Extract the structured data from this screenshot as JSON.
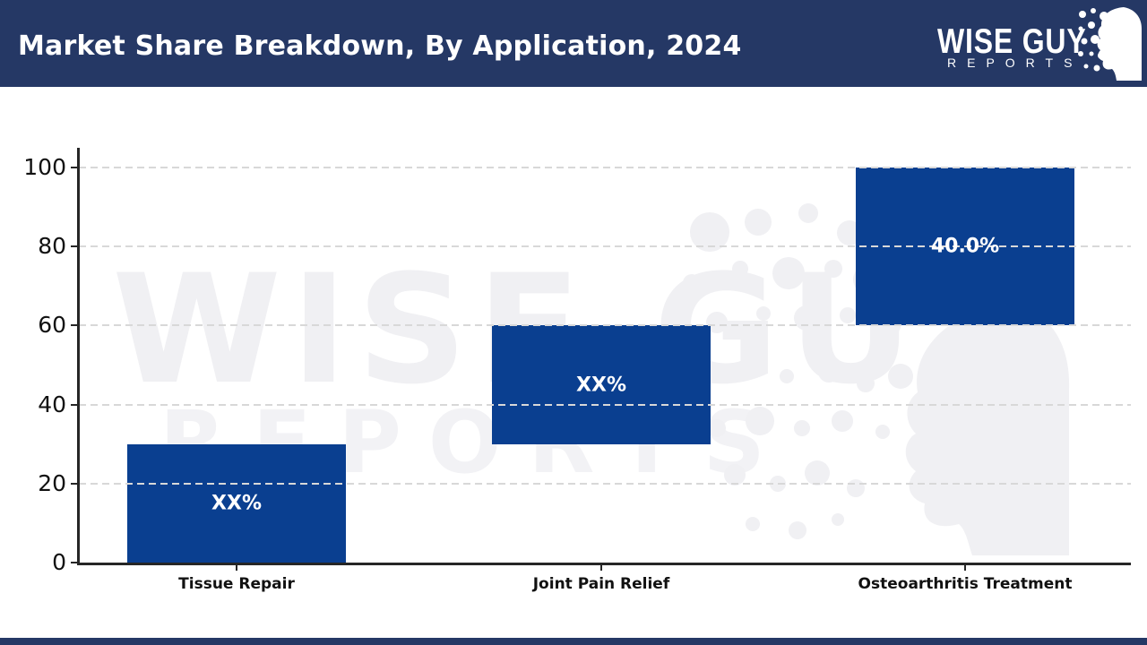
{
  "header": {
    "title": "Market Share Breakdown, By Application, 2024",
    "logo": {
      "line1": "WISE GUY",
      "line2": "REPORTS"
    }
  },
  "watermark": {
    "line1": "WISE GUY",
    "line2": "REPORTS"
  },
  "chart_data": {
    "type": "bar",
    "variant": "floating-step",
    "categories": [
      "Tissue Repair",
      "Joint Pain Relief",
      "Osteoarthritis Treatment"
    ],
    "series": [
      {
        "name": "Market Share",
        "segments": [
          {
            "category": "Tissue Repair",
            "from": 0,
            "to": 30,
            "label": "XX%"
          },
          {
            "category": "Joint Pain Relief",
            "from": 30,
            "to": 60,
            "label": "XX%"
          },
          {
            "category": "Osteoarthritis Treatment",
            "from": 60,
            "to": 100,
            "label": "40.0%"
          }
        ]
      }
    ],
    "yticks": [
      0,
      20,
      40,
      60,
      80,
      100
    ],
    "ylim": [
      0,
      105
    ],
    "grid": "horizontal-dashed",
    "legend": "none",
    "bar_color": "#0A3F90",
    "bar_label_color": "#ffffff",
    "grid_color": "#d8d8d8",
    "axis_color": "#262626"
  },
  "colors": {
    "header_bg": "#253865",
    "footer_bg": "#253865",
    "watermark": "#f0f0f3"
  }
}
